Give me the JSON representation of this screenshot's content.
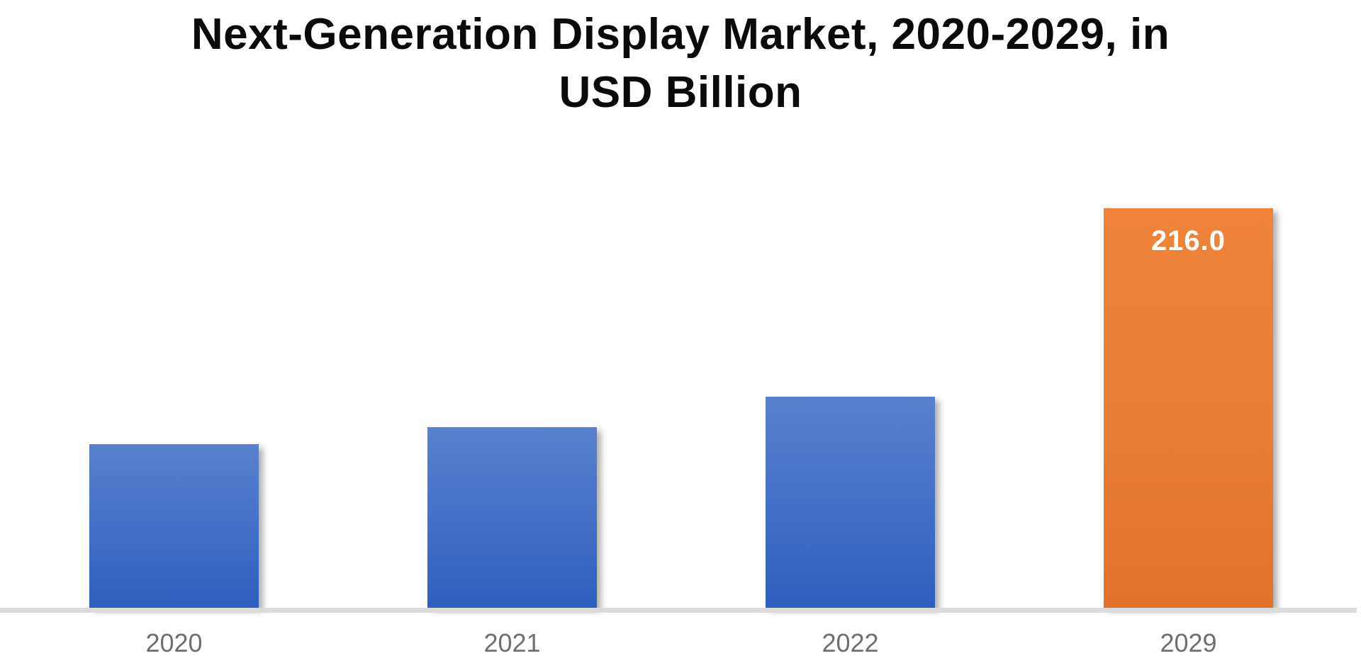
{
  "chart_data": {
    "type": "bar",
    "title": "Next-Generation Display Market, 2020-2029, in USD Billion",
    "title_lines": [
      "Next-Generation Display Market, 2020-2029, in",
      "USD Billion"
    ],
    "categories": [
      "2020",
      "2021",
      "2022",
      "2029"
    ],
    "values": [
      88.5,
      97.5,
      114.3,
      216.0
    ],
    "data_labels": [
      "",
      "",
      "",
      "216.0"
    ],
    "highlight_index": 3,
    "xlabel": "",
    "ylabel": "",
    "ylim": [
      0,
      216
    ],
    "grid": false,
    "legend_position": "none",
    "colors": {
      "bar_blue_top": "#5880ce",
      "bar_blue_bottom": "#2e5fbe",
      "bar_orange": "#e87e38",
      "axis_line_gray": "#dbdbdb",
      "tick_label_gray": "#6f6f6f",
      "title_black": "#0a0a0a",
      "data_label_white": "#ffffff"
    }
  }
}
